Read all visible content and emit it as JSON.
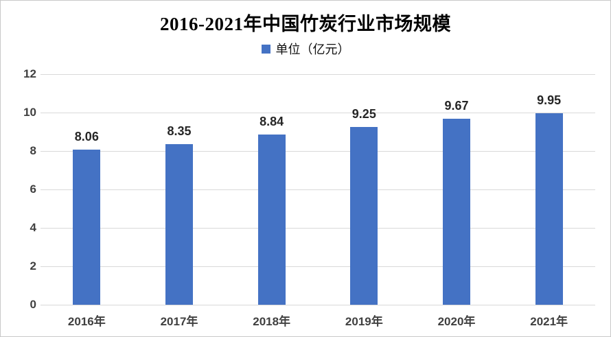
{
  "chart_data": {
    "type": "bar",
    "title": "2016-2021年中国竹炭行业市场规模",
    "legend": "单位（亿元）",
    "categories": [
      "2016年",
      "2017年",
      "2018年",
      "2019年",
      "2020年",
      "2021年"
    ],
    "values": [
      8.06,
      8.35,
      8.84,
      9.25,
      9.67,
      9.95
    ],
    "ylim": [
      0,
      12
    ],
    "yticks": [
      0,
      2,
      4,
      6,
      8,
      10,
      12
    ],
    "grid": "horizontal",
    "legend_position": "top-center",
    "value_label_decimals": 2
  },
  "colors": {
    "bar": "#4472C4",
    "gridline": "#d9d9d9",
    "title_text": "#000000",
    "axis_label_text": "#404040",
    "value_label_text": "#262626",
    "frame_border": "#c9c9c9",
    "background": "#ffffff"
  }
}
